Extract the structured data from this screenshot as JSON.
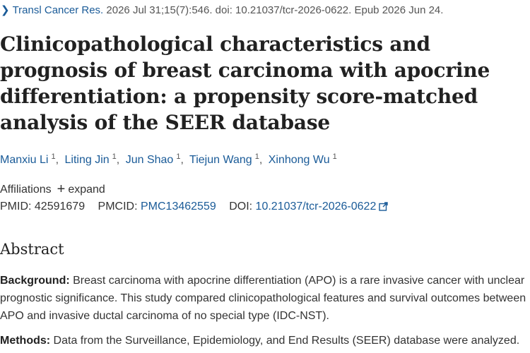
{
  "citation": {
    "journal": "Transl Cancer Res.",
    "details": " 2026 Jul 31;15(7):546. doi: 10.21037/tcr-2026-0622. Epub 2026 Jun 24."
  },
  "title": "Clinicopathological characteristics and prognosis of breast carcinoma with apocrine differentiation: a propensity score-matched analysis of the SEER database",
  "authors": [
    {
      "name": "Manxiu Li",
      "sup": "1"
    },
    {
      "name": "Liting Jin",
      "sup": "1"
    },
    {
      "name": "Jun Shao",
      "sup": "1"
    },
    {
      "name": "Tiejun Wang",
      "sup": "1"
    },
    {
      "name": "Xinhong Wu",
      "sup": "1"
    }
  ],
  "affiliations": {
    "label": "Affiliations",
    "expand_label": "expand"
  },
  "ids": {
    "pmid_label": "PMID:",
    "pmid": "42591679",
    "pmcid_label": "PMCID:",
    "pmcid": "PMC13462559",
    "doi_label": "DOI:",
    "doi": "10.21037/tcr-2026-0622"
  },
  "abstract": {
    "heading": "Abstract",
    "background_label": "Background:",
    "background_text": " Breast carcinoma with apocrine differentiation (APO) is a rare invasive cancer with unclear prognostic significance. This study compared clinicopathological features and survival outcomes between APO and invasive ductal carcinoma of no special type (IDC-NST).",
    "methods_label": "Methods:",
    "methods_text": " Data from the Surveillance, Epidemiology, and End Results (SEER) database were analyzed."
  },
  "colors": {
    "link": "#1a5b98",
    "text": "#212121",
    "muted": "#555555"
  },
  "icons": [
    "chevron-right-icon",
    "plus-icon",
    "external-link-icon"
  ]
}
